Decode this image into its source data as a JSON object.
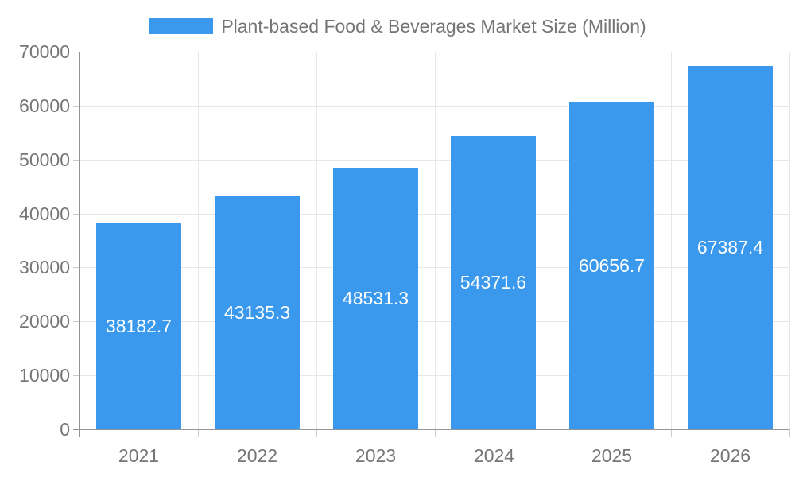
{
  "chart_data": {
    "type": "bar",
    "title": "Plant-based Food & Beverages Market Size (Million)",
    "categories": [
      "2021",
      "2022",
      "2023",
      "2024",
      "2025",
      "2026"
    ],
    "values": [
      38182.7,
      43135.3,
      48531.3,
      54371.6,
      60656.7,
      67387.4
    ],
    "value_labels": [
      "38182.7",
      "43135.3",
      "48531.3",
      "54371.6",
      "60656.7",
      "67387.4"
    ],
    "xlabel": "",
    "ylabel": "",
    "ylim": [
      0,
      70000
    ],
    "ytick_step": 10000,
    "ytick_labels": [
      "0",
      "10000",
      "20000",
      "30000",
      "40000",
      "50000",
      "60000",
      "70000"
    ],
    "grid": true,
    "legend_position": "top-center",
    "colors": {
      "bar": "#3A99EC",
      "value_label": "#FFFFFF",
      "axis_text": "#757575",
      "gridline": "#E7E7E7",
      "axis_line": "#949494",
      "tick": "#CCCCCC",
      "background": "#FFFFFF"
    }
  }
}
